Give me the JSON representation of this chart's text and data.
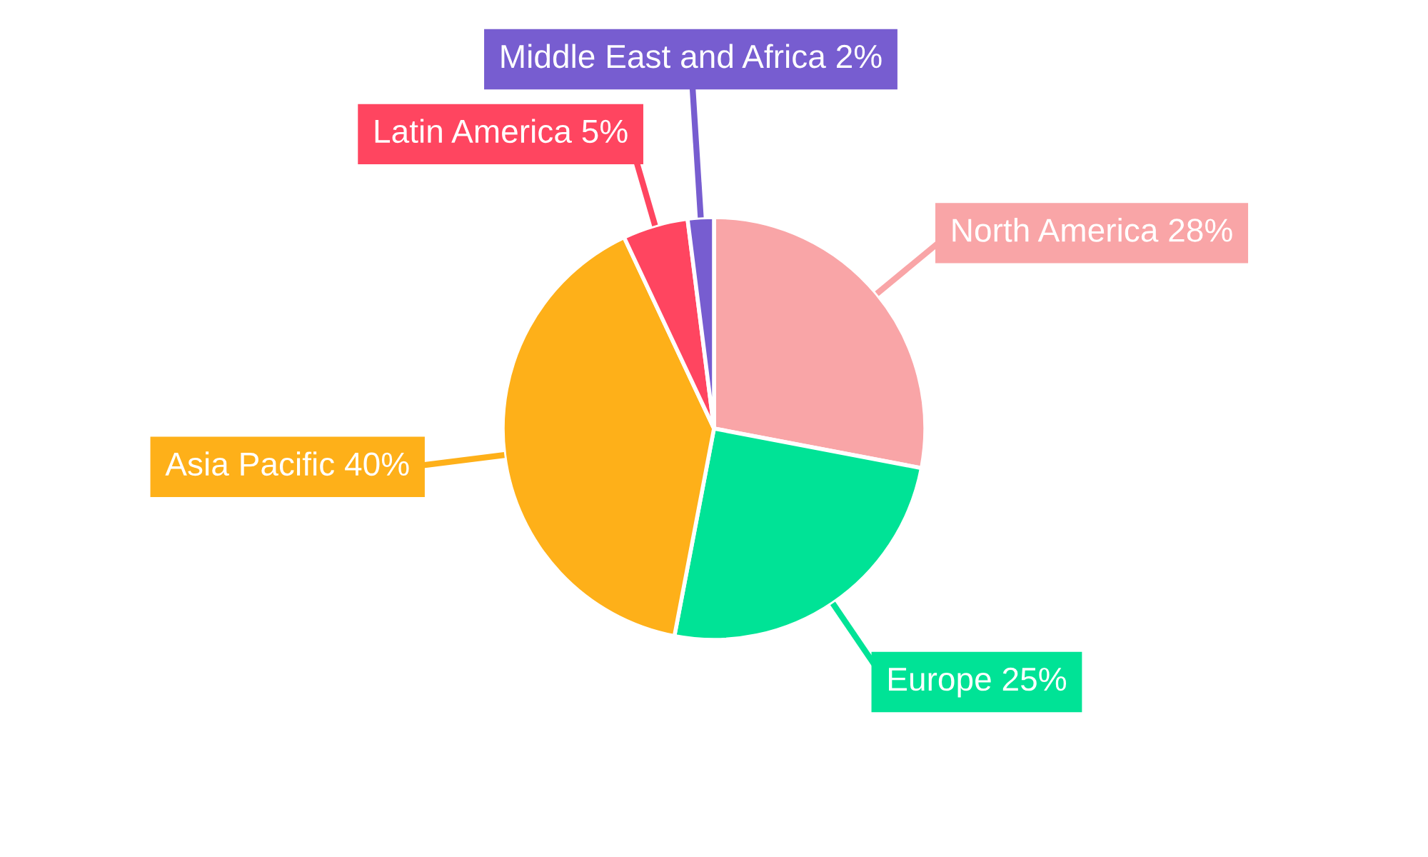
{
  "chart_data": {
    "type": "pie",
    "categories": [
      "North America",
      "Europe",
      "Asia Pacific",
      "Latin America",
      "Middle East and Africa"
    ],
    "values": [
      28,
      25,
      40,
      5,
      2
    ],
    "value_labels": [
      "28%",
      "25%",
      "40%",
      "5%",
      "2%"
    ],
    "colors": [
      "#f9a5a7",
      "#00e396",
      "#feb019",
      "#ff4560",
      "#775dd0"
    ]
  }
}
